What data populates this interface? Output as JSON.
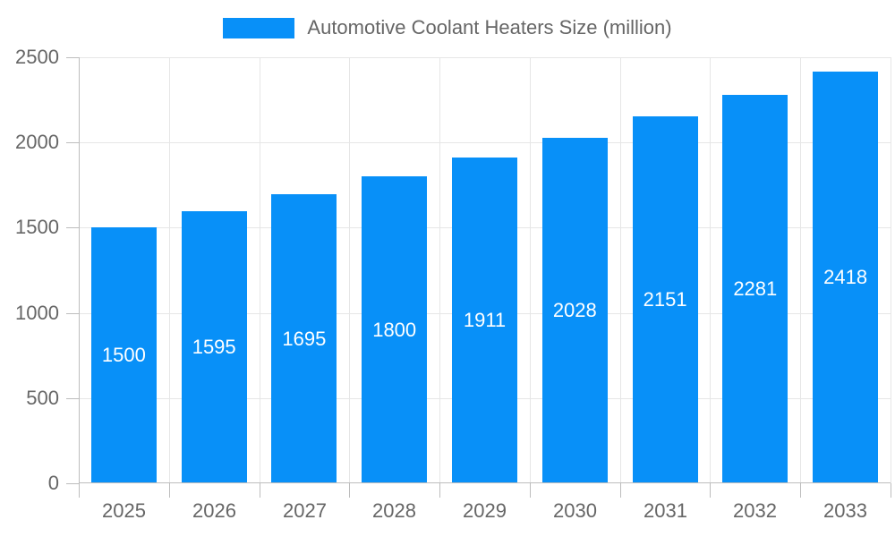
{
  "chart_data": {
    "type": "bar",
    "title": "Automotive Coolant Heaters Size (million)",
    "categories": [
      "2025",
      "2026",
      "2027",
      "2028",
      "2029",
      "2030",
      "2031",
      "2032",
      "2033"
    ],
    "values": [
      1500,
      1595,
      1695,
      1800,
      1911,
      2028,
      2151,
      2281,
      2418
    ],
    "xlabel": "",
    "ylabel": "",
    "ylim": [
      0,
      2500
    ],
    "yticks": [
      0,
      500,
      1000,
      1500,
      2000,
      2500
    ],
    "legend_position": "top",
    "grid": true,
    "value_label_placement": "inside-center",
    "colors": {
      "bar": "#0890f8",
      "grid": "#e6e6e6",
      "axis": "#bdbdbd",
      "label": "#666666",
      "value_label": "#ffffff",
      "background": "#ffffff"
    }
  }
}
